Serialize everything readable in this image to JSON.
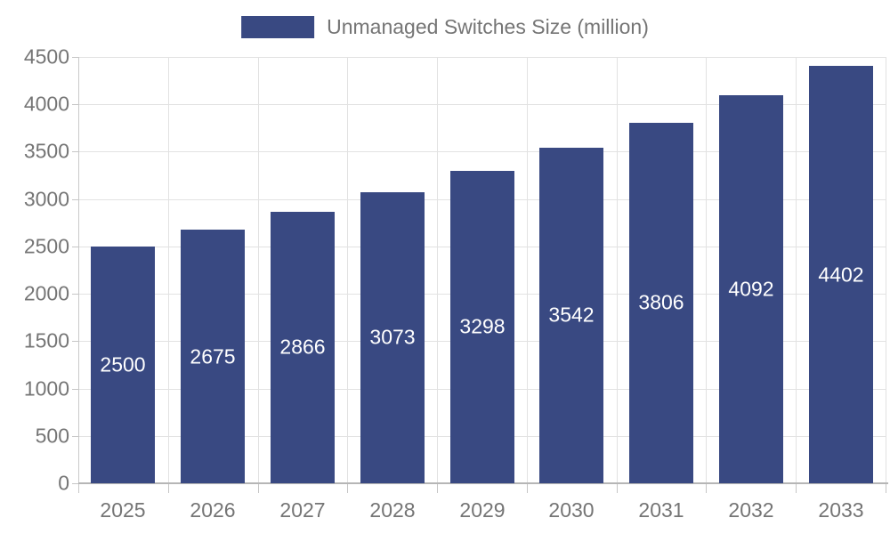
{
  "legend": {
    "label": "Unmanaged Switches Size (million)"
  },
  "chart_data": {
    "type": "bar",
    "title": "Unmanaged Switches Size (million)",
    "categories": [
      "2025",
      "2026",
      "2027",
      "2028",
      "2029",
      "2030",
      "2031",
      "2032",
      "2033"
    ],
    "values": [
      2500,
      2675,
      2866,
      3073,
      3298,
      3542,
      3806,
      4092,
      4402
    ],
    "value_labels": [
      "2500",
      "2675",
      "2866",
      "3073",
      "3298",
      "3542",
      "3806",
      "4092",
      "4402"
    ],
    "xlabel": "",
    "ylabel": "",
    "ylim": [
      0,
      4500
    ],
    "ytick_step": 500,
    "ytick_labels": [
      "0",
      "500",
      "1000",
      "1500",
      "2000",
      "2500",
      "3000",
      "3500",
      "4000",
      "4500"
    ],
    "grid": true,
    "legend_position": "top",
    "colors": {
      "bar": "#394982",
      "value_label": "#ffffff",
      "axis_text": "#757575",
      "gridline": "#e2e2e2",
      "axis_line": "#b6b6b6"
    }
  }
}
